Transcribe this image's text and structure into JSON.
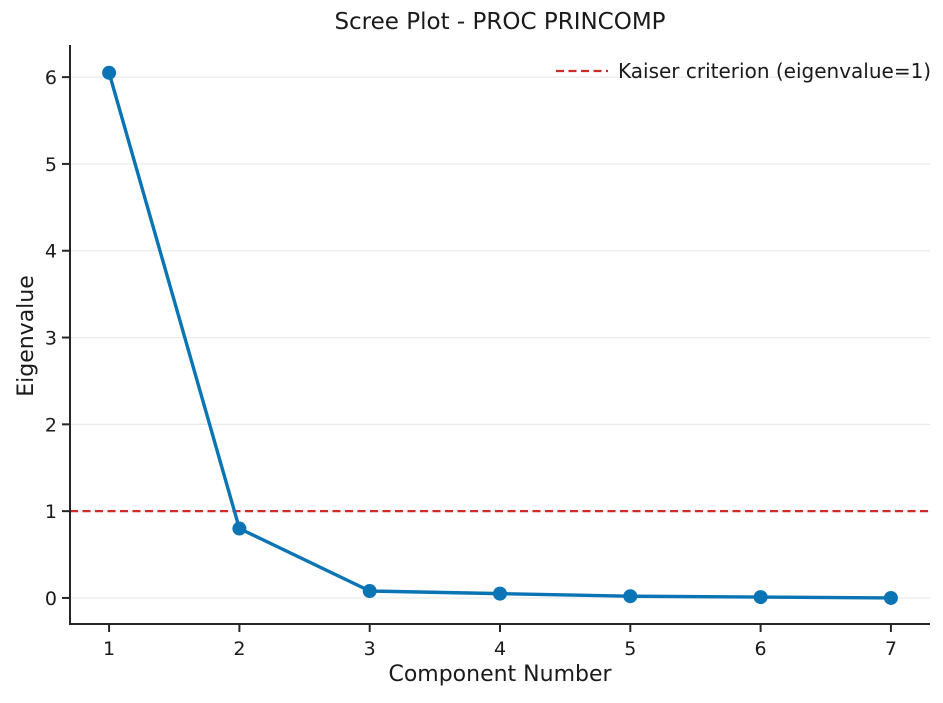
{
  "chart_data": {
    "type": "line",
    "title": "Scree Plot - PROC PRINCOMP",
    "xlabel": "Component Number",
    "ylabel": "Eigenvalue",
    "x": [
      1,
      2,
      3,
      4,
      5,
      6,
      7
    ],
    "series": [
      {
        "name": "Eigenvalue",
        "values": [
          6.05,
          0.8,
          0.08,
          0.05,
          0.02,
          0.01,
          0.0
        ],
        "color": "#0b74b5",
        "marker": "circle"
      }
    ],
    "reference_lines": [
      {
        "y": 1.0,
        "label": "Kaiser criterion (eigenvalue=1)",
        "color": "#d02b28",
        "style": "dashed"
      }
    ],
    "xticks": {
      "values": [
        1,
        2,
        3,
        4,
        5,
        6,
        7
      ],
      "labels": [
        "1",
        "2",
        "3",
        "4",
        "5",
        "6",
        "7"
      ]
    },
    "yticks": {
      "values": [
        0,
        1,
        2,
        3,
        4,
        5,
        6
      ],
      "labels": [
        "0",
        "1",
        "2",
        "3",
        "4",
        "5",
        "6"
      ]
    },
    "xlim": [
      0.7,
      7.3
    ],
    "ylim": [
      -0.3,
      6.37
    ],
    "grid": "horizontal-only",
    "legend_position": "upper-right",
    "colors": {
      "series": "#0b74b5",
      "reference": "#d02b28",
      "grid": "#eaeaea",
      "spine": "#262626",
      "text": "#1a1a1a",
      "background": "#ffffff"
    }
  }
}
